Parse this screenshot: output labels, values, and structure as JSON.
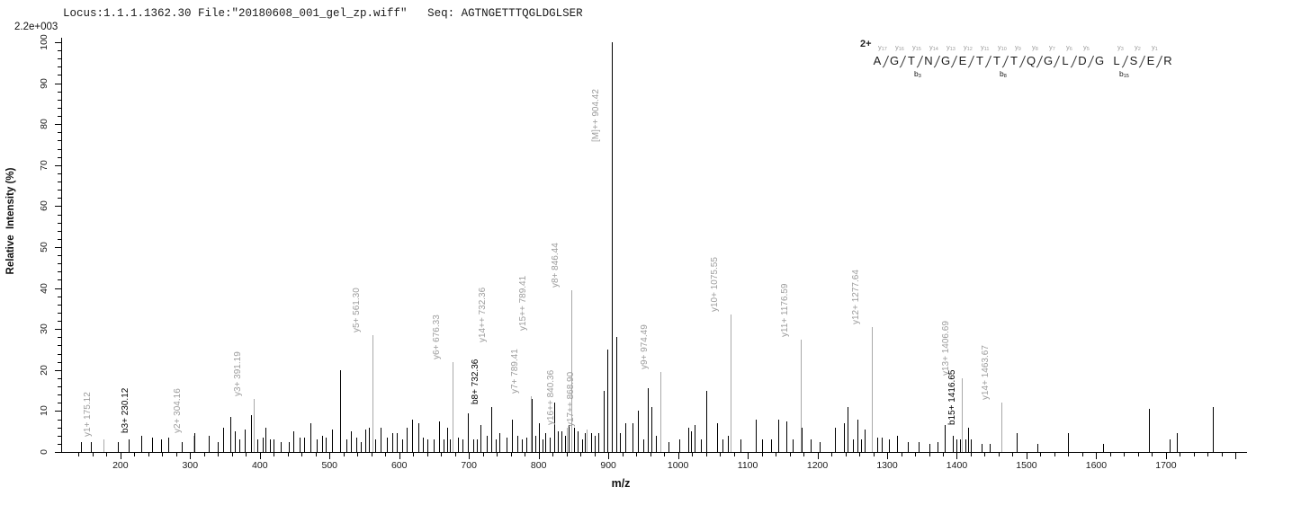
{
  "header": {
    "locus_line": "Locus:1.1.1.1362.30 File:\"20180608_001_gel_zp.wiff\"   Seq: AGTNGETTTQGLDGLSER",
    "intensity_scale": "2.2e+003"
  },
  "axes": {
    "xlabel": "m/z",
    "ylabel": "Relative  Intensity (%)"
  },
  "sequence_panel": {
    "charge": "2+",
    "residues": [
      "A",
      "G",
      "T",
      "N",
      "G",
      "E",
      "T",
      "T",
      "T",
      "Q",
      "G",
      "L",
      "D",
      "G",
      "L",
      "S",
      "E",
      "R"
    ],
    "cleavages": [
      {
        "gap": 1,
        "y": "17"
      },
      {
        "gap": 2,
        "y": "16"
      },
      {
        "gap": 3,
        "y": "15",
        "b": "3"
      },
      {
        "gap": 4,
        "y": "14"
      },
      {
        "gap": 5,
        "y": "13"
      },
      {
        "gap": 6,
        "y": "12"
      },
      {
        "gap": 7,
        "y": "11"
      },
      {
        "gap": 8,
        "y": "10",
        "b": "8"
      },
      {
        "gap": 9,
        "y": "9"
      },
      {
        "gap": 10,
        "y": "8"
      },
      {
        "gap": 11,
        "y": "7"
      },
      {
        "gap": 12,
        "y": "6"
      },
      {
        "gap": 13,
        "y": "5"
      },
      {
        "gap": 15,
        "y": "3",
        "b": "15"
      },
      {
        "gap": 16,
        "y": "2"
      },
      {
        "gap": 17,
        "y": "1"
      }
    ]
  },
  "chart_data": {
    "type": "bar",
    "subtype": "centroided MS/MS mass spectrum (stick plot)",
    "title": "Locus:1.1.1.1362.30 File:\"20180608_001_gel_zp.wiff\" Seq: AGTNGETTTQGLDGLSER",
    "xlabel": "m/z",
    "ylabel": "Relative  Intensity (%)",
    "xlim": [
      115,
      1815
    ],
    "ylim": [
      0,
      100
    ],
    "x_major_tick_start": 200,
    "x_major_tick_end": 1700,
    "x_major_tick_step": 100,
    "x_minor_tick_step": 20,
    "y_major_tick_step": 10,
    "y_minor_tick_step": 2,
    "grid": false,
    "legend": "none",
    "colors": {
      "peak": "#000000",
      "matched_line": "#a9a9a9",
      "gray_label": "#9c9c9c",
      "black_label": "#000000"
    },
    "labeled_ions": [
      {
        "label": "y1+ 175.12",
        "mz": 175.12,
        "anchor_pct": 3,
        "color": "gray"
      },
      {
        "label": "b3+ 230.12",
        "mz": 230.12,
        "anchor_pct": 4,
        "color": "black"
      },
      {
        "label": "y2+ 304.16",
        "mz": 304.16,
        "anchor_pct": 4,
        "color": "gray"
      },
      {
        "label": "y3+ 391.19",
        "mz": 391.19,
        "anchor_pct": 13,
        "color": "gray"
      },
      {
        "label": "y5+ 561.30",
        "mz": 561.3,
        "anchor_pct": 28.5,
        "color": "gray"
      },
      {
        "label": "y6+ 676.33",
        "mz": 676.33,
        "anchor_pct": 22,
        "color": "gray"
      },
      {
        "label": "b8+ 732.36",
        "mz": 732.36,
        "anchor_pct": 11,
        "color": "black"
      },
      {
        "label": "y14++ 732.36",
        "mz": 732.36,
        "anchor_pct": 26,
        "color": "gray",
        "dx": 8,
        "noline": true
      },
      {
        "label": "y7+ 789.41",
        "mz": 789.41,
        "anchor_pct": 13.5,
        "color": "gray"
      },
      {
        "label": "y15++ 789.41",
        "mz": 789.41,
        "anchor_pct": 29,
        "color": "gray",
        "dx": 9,
        "noline": true
      },
      {
        "label": "y16++ 840.36",
        "mz": 840.36,
        "anchor_pct": 6,
        "color": "gray"
      },
      {
        "label": "y8+ 846.44",
        "mz": 846.44,
        "anchor_pct": 39.5,
        "color": "gray"
      },
      {
        "label": "y17++ 868.90",
        "mz": 868.9,
        "anchor_pct": 5.5,
        "color": "gray"
      },
      {
        "label": "[M]++ 904.42",
        "mz": 904.42,
        "anchor_pct": 75,
        "color": "gray",
        "noline": true
      },
      {
        "label": "y9+ 974.49",
        "mz": 974.49,
        "anchor_pct": 19.5,
        "color": "gray"
      },
      {
        "label": "y10+ 1075.55",
        "mz": 1075.55,
        "anchor_pct": 33.5,
        "color": "gray"
      },
      {
        "label": "y11+ 1176.59",
        "mz": 1176.59,
        "anchor_pct": 27.5,
        "color": "gray"
      },
      {
        "label": "y12+ 1277.64",
        "mz": 1277.64,
        "anchor_pct": 30.5,
        "color": "gray"
      },
      {
        "label": "y13+ 1406.69",
        "mz": 1406.69,
        "anchor_pct": 18,
        "color": "gray"
      },
      {
        "label": "b15+ 1416.65",
        "mz": 1416.65,
        "anchor_pct": 6,
        "color": "black"
      },
      {
        "label": "y14+ 1463.67",
        "mz": 1463.67,
        "anchor_pct": 12,
        "color": "gray"
      }
    ],
    "unlabeled_peaks": [
      [
        144,
        2.5
      ],
      [
        157,
        2.5
      ],
      [
        196,
        2.5
      ],
      [
        212,
        3
      ],
      [
        246,
        3.5
      ],
      [
        258,
        3
      ],
      [
        269,
        3.5
      ],
      [
        288,
        2.5
      ],
      [
        306,
        4.5
      ],
      [
        327,
        4
      ],
      [
        340,
        2.5
      ],
      [
        347,
        6
      ],
      [
        358,
        8.5
      ],
      [
        364,
        5
      ],
      [
        371,
        3
      ],
      [
        378,
        5.5
      ],
      [
        388,
        9
      ],
      [
        397,
        3
      ],
      [
        404,
        3.5
      ],
      [
        408,
        6
      ],
      [
        414,
        3
      ],
      [
        420,
        3
      ],
      [
        430,
        2.5
      ],
      [
        441,
        2.5
      ],
      [
        448,
        5
      ],
      [
        457,
        3.5
      ],
      [
        464,
        3.5
      ],
      [
        473,
        7
      ],
      [
        481,
        3
      ],
      [
        489,
        4
      ],
      [
        495,
        3.5
      ],
      [
        503,
        5.5
      ],
      [
        515,
        20
      ],
      [
        524,
        3
      ],
      [
        531,
        5
      ],
      [
        538,
        3.5
      ],
      [
        545,
        2.5
      ],
      [
        551,
        5.5
      ],
      [
        557,
        6
      ],
      [
        565,
        3
      ],
      [
        573,
        6
      ],
      [
        582,
        3.5
      ],
      [
        590,
        4.5
      ],
      [
        597,
        4.5
      ],
      [
        604,
        3
      ],
      [
        611,
        6
      ],
      [
        618,
        8
      ],
      [
        628,
        7
      ],
      [
        634,
        3.5
      ],
      [
        641,
        3
      ],
      [
        650,
        3
      ],
      [
        657,
        7.5
      ],
      [
        663,
        3
      ],
      [
        669,
        6
      ],
      [
        673,
        3
      ],
      [
        684,
        3.5
      ],
      [
        691,
        3
      ],
      [
        699,
        9.5
      ],
      [
        706,
        3
      ],
      [
        711,
        3
      ],
      [
        716,
        6.5
      ],
      [
        725,
        4
      ],
      [
        738,
        3
      ],
      [
        744,
        4.5
      ],
      [
        754,
        3.5
      ],
      [
        762,
        8
      ],
      [
        769,
        4
      ],
      [
        776,
        3
      ],
      [
        782,
        3.5
      ],
      [
        790,
        13
      ],
      [
        795,
        4
      ],
      [
        800,
        7
      ],
      [
        805,
        3
      ],
      [
        810,
        4.5
      ],
      [
        816,
        3.5
      ],
      [
        822,
        12
      ],
      [
        828,
        5
      ],
      [
        833,
        5
      ],
      [
        838,
        4
      ],
      [
        843,
        6.5
      ],
      [
        851,
        6
      ],
      [
        856,
        5
      ],
      [
        862,
        3
      ],
      [
        866,
        4.5
      ],
      [
        875,
        4.5
      ],
      [
        880,
        4
      ],
      [
        886,
        4.5
      ],
      [
        893,
        15
      ],
      [
        899,
        25
      ],
      [
        904.42,
        100
      ],
      [
        911,
        28
      ],
      [
        916,
        4.5
      ],
      [
        924,
        7
      ],
      [
        935,
        7
      ],
      [
        943,
        10
      ],
      [
        950,
        3
      ],
      [
        957,
        15.5
      ],
      [
        962,
        11
      ],
      [
        968,
        4
      ],
      [
        975,
        3
      ],
      [
        986,
        2.5
      ],
      [
        1002,
        3
      ],
      [
        1015,
        6
      ],
      [
        1019,
        5
      ],
      [
        1024,
        6.5
      ],
      [
        1033,
        3
      ],
      [
        1041,
        15
      ],
      [
        1056,
        7
      ],
      [
        1064,
        3
      ],
      [
        1071,
        4
      ],
      [
        1076,
        5.5
      ],
      [
        1090,
        3
      ],
      [
        1112,
        8
      ],
      [
        1120,
        3
      ],
      [
        1133,
        3
      ],
      [
        1144,
        8
      ],
      [
        1155,
        7.5
      ],
      [
        1164,
        3
      ],
      [
        1177,
        6
      ],
      [
        1190,
        3
      ],
      [
        1203,
        2.5
      ],
      [
        1225,
        6
      ],
      [
        1238,
        7
      ],
      [
        1243,
        11
      ],
      [
        1251,
        3
      ],
      [
        1257,
        8
      ],
      [
        1263,
        3
      ],
      [
        1268,
        5.5
      ],
      [
        1277.64,
        19.5
      ],
      [
        1286,
        3.5
      ],
      [
        1292,
        3.5
      ],
      [
        1302,
        3
      ],
      [
        1314,
        4
      ],
      [
        1330,
        2.5
      ],
      [
        1345,
        2.5
      ],
      [
        1360,
        2
      ],
      [
        1372,
        2.5
      ],
      [
        1383,
        6.5
      ],
      [
        1394,
        4
      ],
      [
        1399,
        3
      ],
      [
        1404,
        3
      ],
      [
        1412,
        3
      ],
      [
        1420,
        3
      ],
      [
        1435,
        2
      ],
      [
        1447,
        2
      ],
      [
        1486,
        4.5
      ],
      [
        1516,
        2
      ],
      [
        1560,
        4.5
      ],
      [
        1610,
        2
      ],
      [
        1676,
        10.5
      ],
      [
        1705,
        3
      ],
      [
        1715,
        4.5
      ],
      [
        1767,
        11
      ]
    ]
  }
}
